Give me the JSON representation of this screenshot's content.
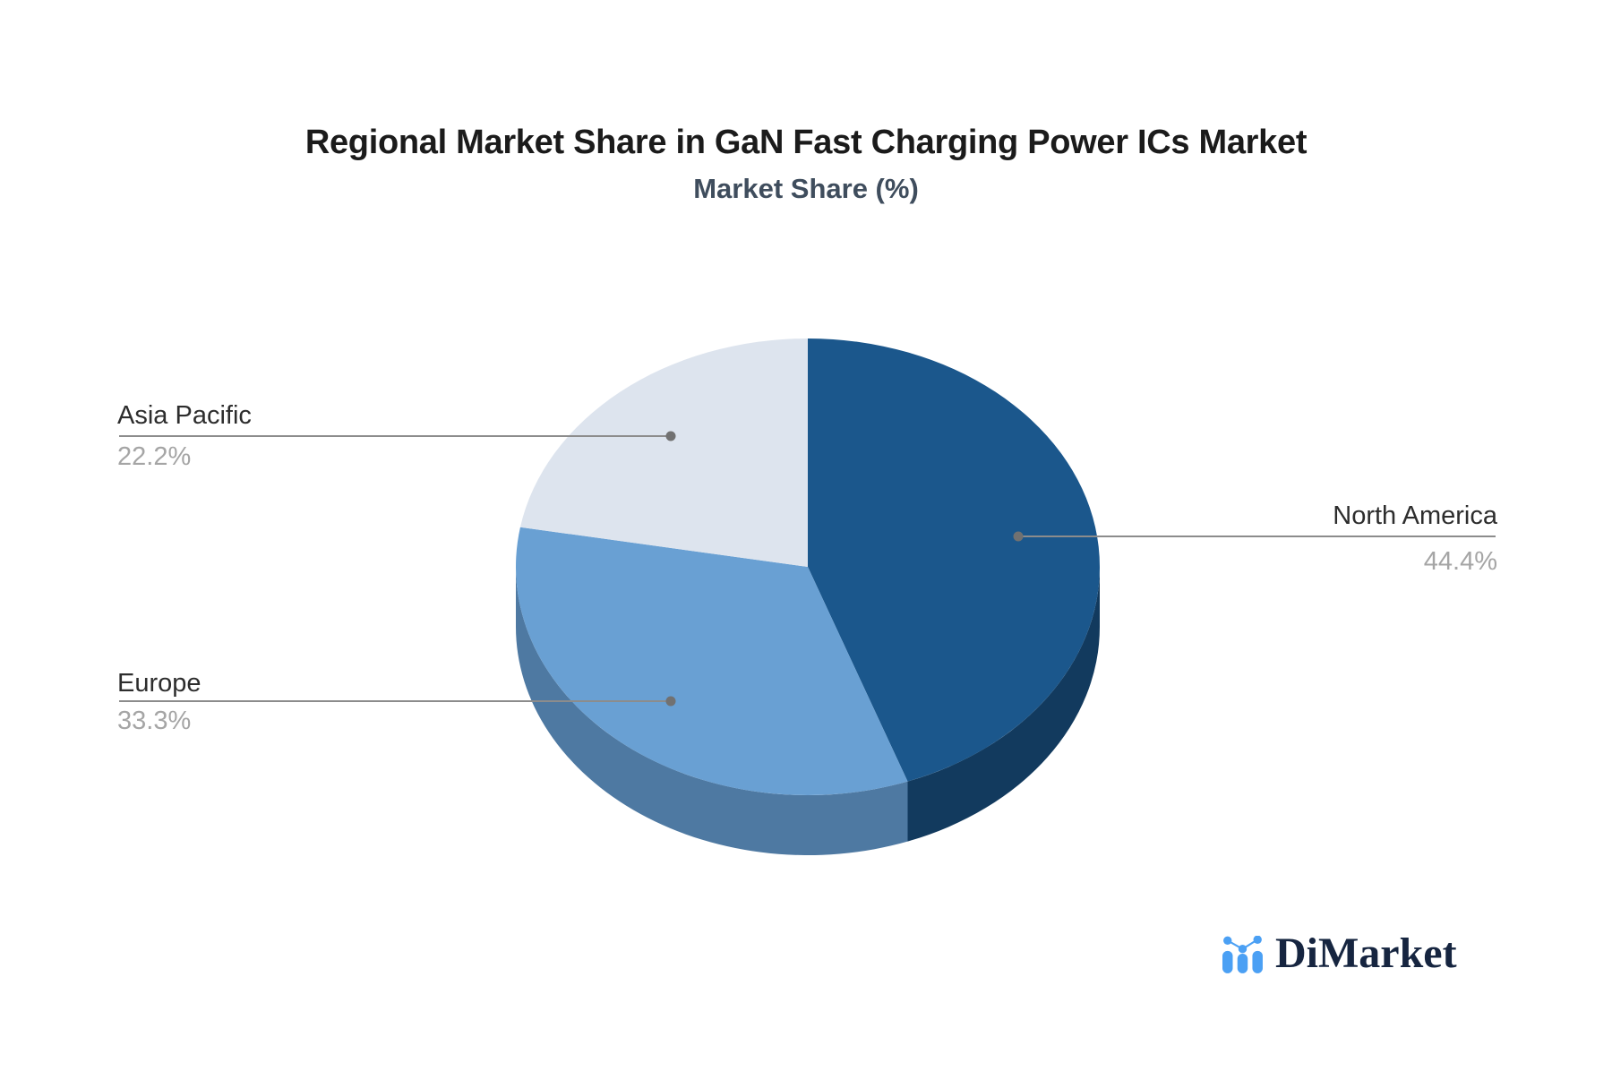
{
  "header": {
    "title": "Regional Market Share in GaN Fast Charging Power ICs Market",
    "subtitle": "Market Share (%)"
  },
  "chart_data": {
    "type": "pie",
    "title": "Regional Market Share in GaN Fast Charging Power ICs Market",
    "value_label": "Market Share (%)",
    "start_angle_deg": 0,
    "direction": "clockwise",
    "effect": "3d-depth",
    "legend_position": "callouts",
    "series": [
      {
        "name": "North America",
        "value": 44.4,
        "display": "44.4%",
        "color": "#1B578C",
        "side_color": "#123A5E"
      },
      {
        "name": "Europe",
        "value": 33.3,
        "display": "33.3%",
        "color": "#69A0D3",
        "side_color": "#4E79A2"
      },
      {
        "name": "Asia Pacific",
        "value": 22.2,
        "display": "22.2%",
        "color": "#DDE4EE",
        "side_color": "#B9C5D9"
      }
    ]
  },
  "callouts": {
    "asia_pacific": {
      "label": "Asia Pacific",
      "value": "22.2%"
    },
    "europe": {
      "label": "Europe",
      "value": "33.3%"
    },
    "north_america": {
      "label": "North America",
      "value": "44.4%"
    }
  },
  "logo": {
    "brand": "DiMarket",
    "icon": "bar-chart-logo-icon",
    "accent_color": "#4BA0F4",
    "text_color": "#162540"
  },
  "colors": {
    "background": "#FFFFFF",
    "title": "#1B1B1B",
    "subtitle": "#3F4D5D",
    "label": "#2D2D2D",
    "value": "#A5A5A5",
    "leader_line": "#8C8C8C",
    "dot": "#717171"
  }
}
